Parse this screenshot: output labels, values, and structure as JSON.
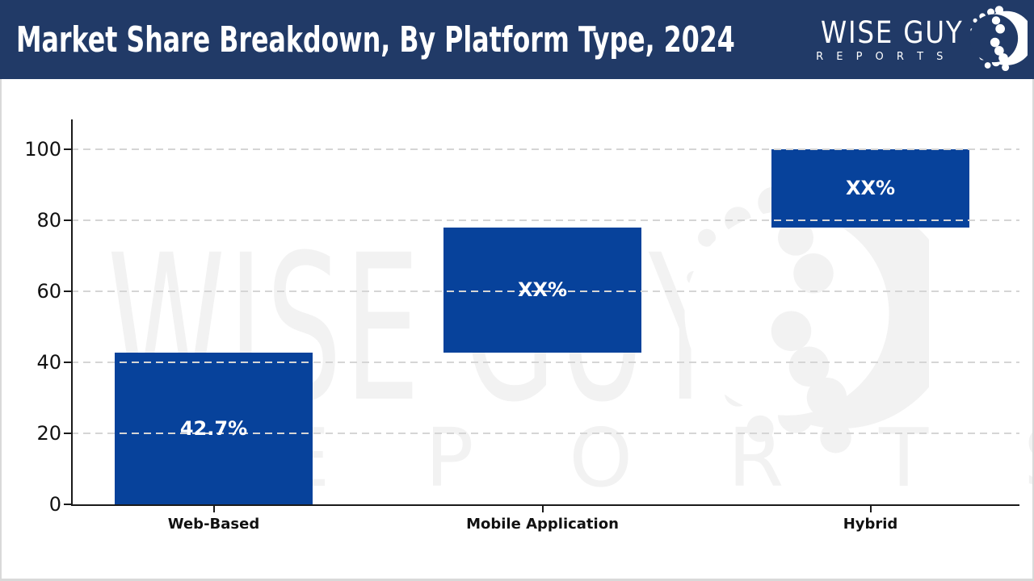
{
  "header": {
    "title": "Market Share Breakdown, By Platform Type, 2024",
    "logo": {
      "line1": "WISE GUY",
      "line2": "R E P O R T S",
      "face_icon": "dotted-face-profile-icon"
    }
  },
  "watermark": {
    "line1": "WISE GUY",
    "line2": "R E P O R T S"
  },
  "colors": {
    "header_bg": "#213a67",
    "bar": "#07429b",
    "grid": "#d5d5d5",
    "axis": "#1a1a1a",
    "label_text": "#111111",
    "bar_label_text": "#ffffff",
    "watermark": "#f2f2f2"
  },
  "chart_data": {
    "type": "bar",
    "subtype": "floating-waterfall",
    "title": "Market Share Breakdown, By Platform Type, 2024",
    "categories": [
      "Web-Based",
      "Mobile Application",
      "Hybrid"
    ],
    "segments": [
      {
        "category": "Web-Based",
        "start": 0,
        "end": 42.7,
        "label": "42.7%"
      },
      {
        "category": "Mobile Application",
        "start": 42.7,
        "end": 78.0,
        "label": "XX%"
      },
      {
        "category": "Hybrid",
        "start": 78.0,
        "end": 100.0,
        "label": "XX%"
      }
    ],
    "y_ticks": [
      0,
      20,
      40,
      60,
      80,
      100
    ],
    "ylim": [
      0,
      108
    ],
    "xlabel": "",
    "ylabel": "",
    "grid": "horizontal-dashed",
    "legend": "none",
    "bar_color": "#07429b",
    "value_unit": "%"
  }
}
